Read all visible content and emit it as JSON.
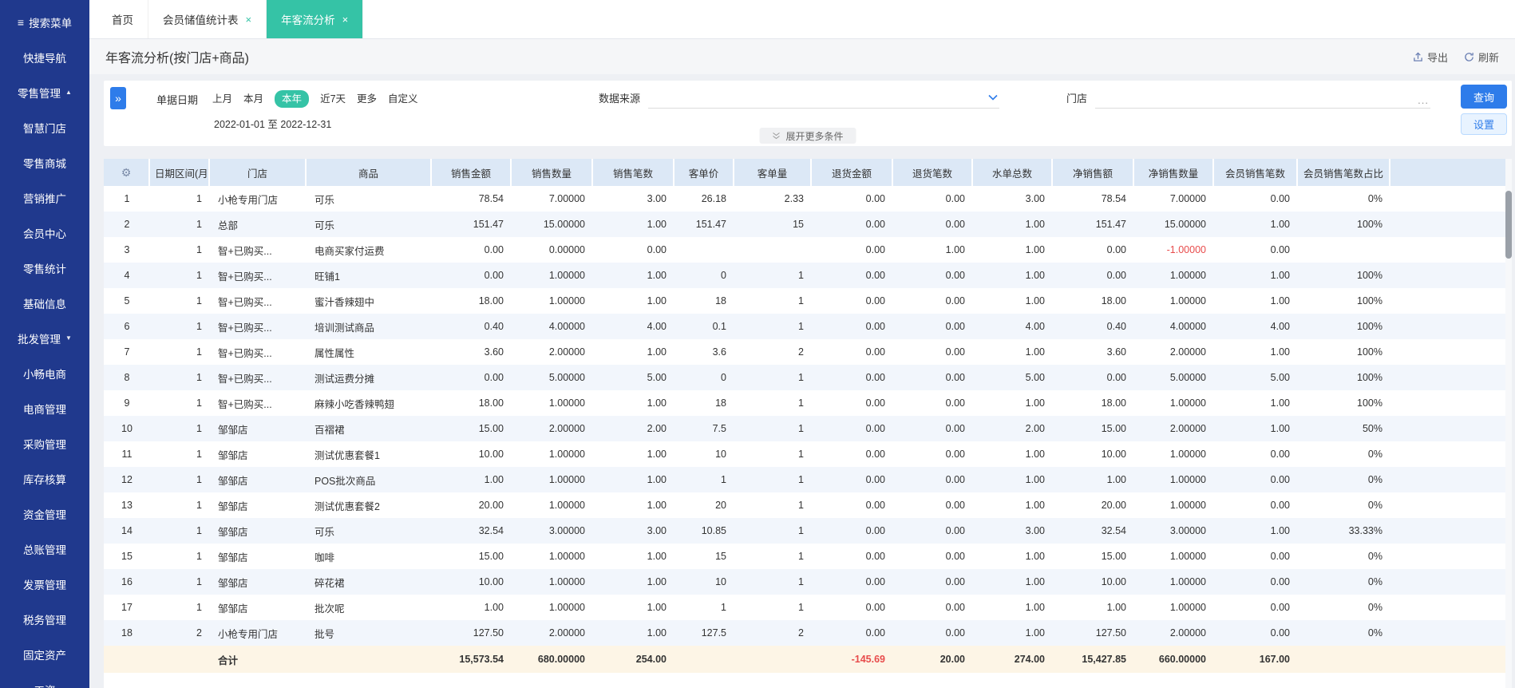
{
  "colors": {
    "sidebar_bg": "#20398d",
    "accent_teal": "#35c3a6",
    "primary_blue": "#2e7cea",
    "table_header_bg": "#dce8f6",
    "row_alt_bg": "#f2f6fc",
    "total_row_bg": "#fdf5e6",
    "negative": "#e84c4c"
  },
  "sidebar": {
    "items": [
      {
        "label": "搜索菜单",
        "icon": "menu-icon"
      },
      {
        "label": "快捷导航"
      },
      {
        "label": "零售管理",
        "caret": "up"
      },
      {
        "label": "智慧门店"
      },
      {
        "label": "零售商城"
      },
      {
        "label": "营销推广"
      },
      {
        "label": "会员中心"
      },
      {
        "label": "零售统计"
      },
      {
        "label": "基础信息"
      },
      {
        "label": "批发管理",
        "caret": "down"
      },
      {
        "label": "小畅电商"
      },
      {
        "label": "电商管理"
      },
      {
        "label": "采购管理"
      },
      {
        "label": "库存核算"
      },
      {
        "label": "资金管理"
      },
      {
        "label": "总账管理"
      },
      {
        "label": "发票管理"
      },
      {
        "label": "税务管理"
      },
      {
        "label": "固定资产"
      },
      {
        "label": "工资"
      }
    ]
  },
  "tabs": [
    {
      "label": "首页",
      "closable": false,
      "active": false
    },
    {
      "label": "会员储值统计表",
      "closable": true,
      "active": false
    },
    {
      "label": "年客流分析",
      "closable": true,
      "active": true
    }
  ],
  "page": {
    "title": "年客流分析(按门店+商品)",
    "export_label": "导出",
    "refresh_label": "刷新"
  },
  "filters": {
    "date_label": "单据日期",
    "date_options": [
      "上月",
      "本月",
      "本年",
      "近7天",
      "更多",
      "自定义"
    ],
    "date_selected": "本年",
    "date_range": "2022-01-01 至 2022-12-31",
    "source_label": "数据来源",
    "store_label": "门店",
    "store_more": "...",
    "query_button": "查询",
    "settings_button": "设置",
    "expand_more": "展开更多条件",
    "collapse_glyph": "»"
  },
  "table": {
    "headers": [
      "日期区间(月)",
      "门店",
      "商品",
      "销售金额",
      "销售数量",
      "销售笔数",
      "客单价",
      "客单量",
      "退货金额",
      "退货笔数",
      "水单总数",
      "净销售额",
      "净销售数量",
      "会员销售笔数",
      "会员销售笔数占比"
    ],
    "rows": [
      [
        "1",
        "1",
        "小枪专用门店",
        "可乐",
        "78.54",
        "7.00000",
        "3.00",
        "26.18",
        "2.33",
        "0.00",
        "0.00",
        "3.00",
        "78.54",
        "7.00000",
        "0.00",
        "0%"
      ],
      [
        "2",
        "1",
        "总部",
        "可乐",
        "151.47",
        "15.00000",
        "1.00",
        "151.47",
        "15",
        "0.00",
        "0.00",
        "1.00",
        "151.47",
        "15.00000",
        "1.00",
        "100%"
      ],
      [
        "3",
        "1",
        "智+已购买...",
        "电商买家付运费",
        "0.00",
        "0.00000",
        "0.00",
        "",
        "",
        "0.00",
        "1.00",
        "1.00",
        "0.00",
        "-1.00000",
        "0.00",
        ""
      ],
      [
        "4",
        "1",
        "智+已购买...",
        "旺铺1",
        "0.00",
        "1.00000",
        "1.00",
        "0",
        "1",
        "0.00",
        "0.00",
        "1.00",
        "0.00",
        "1.00000",
        "1.00",
        "100%"
      ],
      [
        "5",
        "1",
        "智+已购买...",
        "蜜汁香辣翅中",
        "18.00",
        "1.00000",
        "1.00",
        "18",
        "1",
        "0.00",
        "0.00",
        "1.00",
        "18.00",
        "1.00000",
        "1.00",
        "100%"
      ],
      [
        "6",
        "1",
        "智+已购买...",
        "培训测试商品",
        "0.40",
        "4.00000",
        "4.00",
        "0.1",
        "1",
        "0.00",
        "0.00",
        "4.00",
        "0.40",
        "4.00000",
        "4.00",
        "100%"
      ],
      [
        "7",
        "1",
        "智+已购买...",
        "属性属性",
        "3.60",
        "2.00000",
        "1.00",
        "3.6",
        "2",
        "0.00",
        "0.00",
        "1.00",
        "3.60",
        "2.00000",
        "1.00",
        "100%"
      ],
      [
        "8",
        "1",
        "智+已购买...",
        "测试运费分摊",
        "0.00",
        "5.00000",
        "5.00",
        "0",
        "1",
        "0.00",
        "0.00",
        "5.00",
        "0.00",
        "5.00000",
        "5.00",
        "100%"
      ],
      [
        "9",
        "1",
        "智+已购买...",
        "麻辣小吃香辣鸭翅",
        "18.00",
        "1.00000",
        "1.00",
        "18",
        "1",
        "0.00",
        "0.00",
        "1.00",
        "18.00",
        "1.00000",
        "1.00",
        "100%"
      ],
      [
        "10",
        "1",
        "邹邹店",
        "百褶裙",
        "15.00",
        "2.00000",
        "2.00",
        "7.5",
        "1",
        "0.00",
        "0.00",
        "2.00",
        "15.00",
        "2.00000",
        "1.00",
        "50%"
      ],
      [
        "11",
        "1",
        "邹邹店",
        "测试优惠套餐1",
        "10.00",
        "1.00000",
        "1.00",
        "10",
        "1",
        "0.00",
        "0.00",
        "1.00",
        "10.00",
        "1.00000",
        "0.00",
        "0%"
      ],
      [
        "12",
        "1",
        "邹邹店",
        "POS批次商品",
        "1.00",
        "1.00000",
        "1.00",
        "1",
        "1",
        "0.00",
        "0.00",
        "1.00",
        "1.00",
        "1.00000",
        "0.00",
        "0%"
      ],
      [
        "13",
        "1",
        "邹邹店",
        "测试优惠套餐2",
        "20.00",
        "1.00000",
        "1.00",
        "20",
        "1",
        "0.00",
        "0.00",
        "1.00",
        "20.00",
        "1.00000",
        "0.00",
        "0%"
      ],
      [
        "14",
        "1",
        "邹邹店",
        "可乐",
        "32.54",
        "3.00000",
        "3.00",
        "10.85",
        "1",
        "0.00",
        "0.00",
        "3.00",
        "32.54",
        "3.00000",
        "1.00",
        "33.33%"
      ],
      [
        "15",
        "1",
        "邹邹店",
        "咖啡",
        "15.00",
        "1.00000",
        "1.00",
        "15",
        "1",
        "0.00",
        "0.00",
        "1.00",
        "15.00",
        "1.00000",
        "0.00",
        "0%"
      ],
      [
        "16",
        "1",
        "邹邹店",
        "碎花裙",
        "10.00",
        "1.00000",
        "1.00",
        "10",
        "1",
        "0.00",
        "0.00",
        "1.00",
        "10.00",
        "1.00000",
        "0.00",
        "0%"
      ],
      [
        "17",
        "1",
        "邹邹店",
        "批次呢",
        "1.00",
        "1.00000",
        "1.00",
        "1",
        "1",
        "0.00",
        "0.00",
        "1.00",
        "1.00",
        "1.00000",
        "0.00",
        "0%"
      ],
      [
        "18",
        "2",
        "小枪专用门店",
        "批号",
        "127.50",
        "2.00000",
        "1.00",
        "127.5",
        "2",
        "0.00",
        "0.00",
        "1.00",
        "127.50",
        "2.00000",
        "0.00",
        "0%"
      ]
    ],
    "footer": [
      "",
      "",
      "合计",
      "",
      "15,573.54",
      "680.00000",
      "254.00",
      "",
      "",
      "-145.69",
      "20.00",
      "274.00",
      "15,427.85",
      "660.00000",
      "167.00",
      ""
    ]
  }
}
